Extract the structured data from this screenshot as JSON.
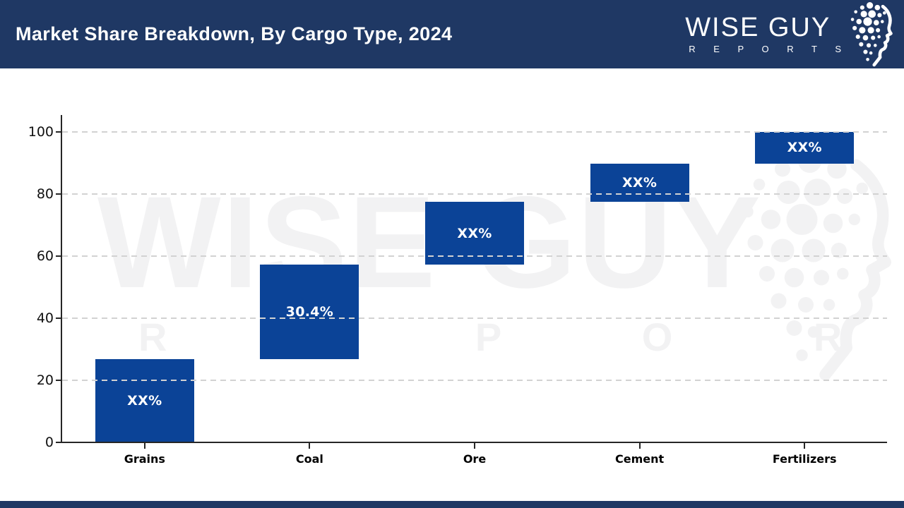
{
  "header": {
    "title": "Market Share Breakdown, By Cargo Type, 2024",
    "bg_color": "#1f3864",
    "logo": {
      "line1": "WISE GUY",
      "line2": "R E P O R T S"
    }
  },
  "watermark": {
    "line1": "WISE GUY",
    "line2": "R E P O R T S"
  },
  "footer": {
    "bg_color": "#1f3864"
  },
  "chart_data": {
    "type": "bar",
    "variant": "waterfall",
    "title": "Market Share Breakdown, By Cargo Type, 2024",
    "categories": [
      "Grains",
      "Coal",
      "Ore",
      "Cement",
      "Fertilizers"
    ],
    "segments": [
      {
        "category": "Grains",
        "start": 0,
        "end": 26.8,
        "label": "XX%"
      },
      {
        "category": "Coal",
        "start": 26.8,
        "end": 57.2,
        "label": "30.4%",
        "value": 30.4
      },
      {
        "category": "Ore",
        "start": 57.2,
        "end": 77.4,
        "label": "XX%"
      },
      {
        "category": "Cement",
        "start": 77.4,
        "end": 89.8,
        "label": "XX%"
      },
      {
        "category": "Fertilizers",
        "start": 89.8,
        "end": 100,
        "label": "XX%"
      }
    ],
    "ylim": [
      0,
      100
    ],
    "yticks": [
      0,
      20,
      40,
      60,
      80,
      100
    ],
    "xlabel": "",
    "ylabel": "",
    "grid": "horizontal-dashed",
    "grid_on_top_of_bars": true,
    "legend": "none",
    "bar_color": "#0b4397",
    "bar_label_color": "#ffffff",
    "axis_color": "#262626",
    "gridline_color": "#d2d2d2"
  }
}
